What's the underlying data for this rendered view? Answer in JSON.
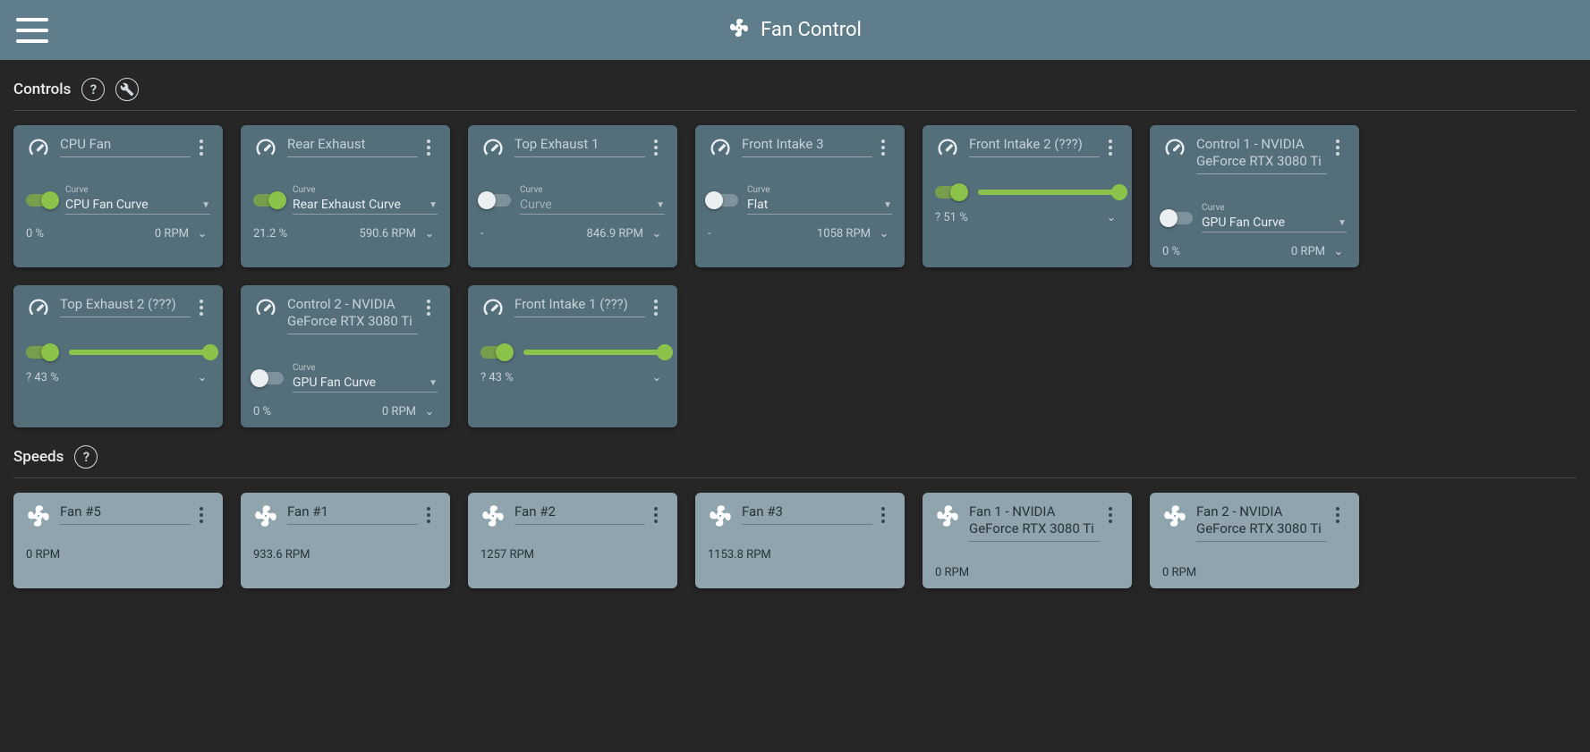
{
  "header": {
    "title": "Fan Control"
  },
  "sections": {
    "controls_title": "Controls",
    "speeds_title": "Speeds"
  },
  "curve_label": "Curve",
  "controls": [
    {
      "name": "CPU Fan",
      "toggle": "on",
      "mode": "curve",
      "curve": "CPU Fan Curve",
      "pct": "0 %",
      "rpm": "0 RPM"
    },
    {
      "name": "Rear Exhaust",
      "toggle": "on",
      "mode": "curve",
      "curve": "Rear Exhaust Curve",
      "pct": "21.2 %",
      "rpm": "590.6 RPM"
    },
    {
      "name": "Top Exhaust 1",
      "toggle": "off",
      "mode": "curve",
      "curve": "Curve",
      "curve_disabled": true,
      "pct": "-",
      "rpm": "846.9 RPM"
    },
    {
      "name": "Front Intake 3",
      "toggle": "off",
      "mode": "curve",
      "curve": "Flat",
      "pct": "-",
      "rpm": "1058 RPM"
    },
    {
      "name": "Front Intake 2 (???)",
      "toggle": "on",
      "mode": "slider",
      "slider_pct": 100,
      "pct": "? 51 %",
      "rpm": ""
    },
    {
      "name": "Control 1 - NVIDIA GeForce RTX 3080 Ti",
      "toggle": "off",
      "mode": "curve",
      "curve": "GPU Fan Curve",
      "pct": "0 %",
      "rpm": "0 RPM",
      "tall": true
    },
    {
      "name": "Top Exhaust 2 (???)",
      "toggle": "on",
      "mode": "slider",
      "slider_pct": 100,
      "pct": "? 43 %",
      "rpm": ""
    },
    {
      "name": "Control 2 - NVIDIA GeForce RTX 3080 Ti",
      "toggle": "off",
      "mode": "curve",
      "curve": "GPU Fan Curve",
      "pct": "0 %",
      "rpm": "0 RPM",
      "tall": true
    },
    {
      "name": "Front Intake 1 (???)",
      "toggle": "on",
      "mode": "slider",
      "slider_pct": 100,
      "pct": "? 43 %",
      "rpm": ""
    }
  ],
  "speeds": [
    {
      "name": "Fan #5",
      "rpm": "0 RPM"
    },
    {
      "name": "Fan #1",
      "rpm": "933.6 RPM"
    },
    {
      "name": "Fan #2",
      "rpm": "1257 RPM"
    },
    {
      "name": "Fan #3",
      "rpm": "1153.8 RPM"
    },
    {
      "name": "Fan 1 - NVIDIA GeForce RTX 3080 Ti",
      "rpm": "0 RPM",
      "tall": true
    },
    {
      "name": "Fan 2 - NVIDIA GeForce RTX 3080 Ti",
      "rpm": "0 RPM",
      "tall": true
    }
  ],
  "colors": {
    "appbar": "#607d8b",
    "card_dark": "#546e7a",
    "card_light": "#90a4ae",
    "accent": "#8bc34a",
    "bg": "#262626"
  }
}
